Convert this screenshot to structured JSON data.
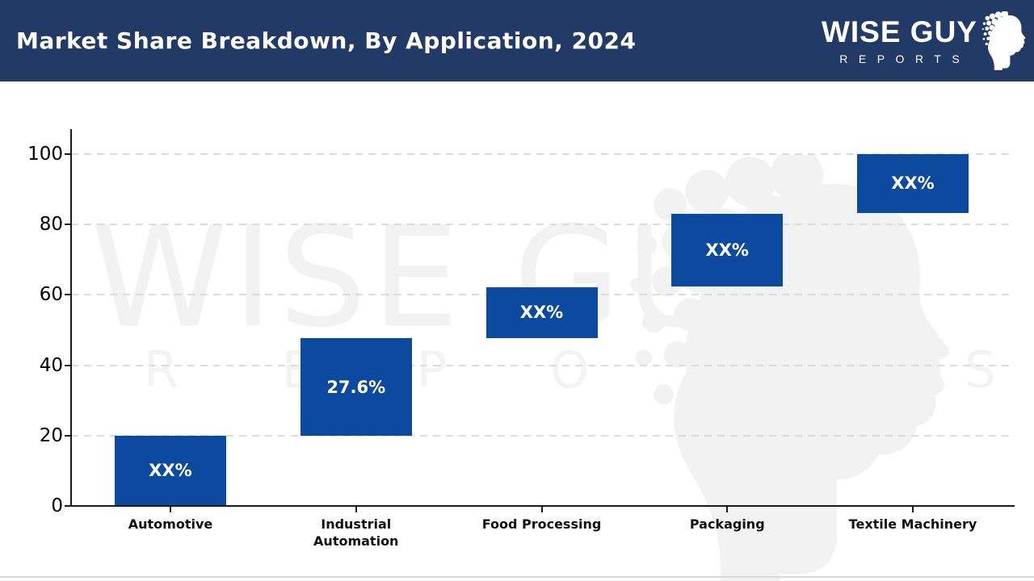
{
  "header": {
    "title": "Market Share Breakdown, By Application, 2024",
    "logo": {
      "word": "WISE GUY",
      "sub": "REPORTS"
    },
    "bg_color": "#213a66"
  },
  "watermark": {
    "line1": "WISE GUY",
    "line2": "R E P O R T S"
  },
  "chart_data": {
    "type": "bar",
    "subtype": "waterfall",
    "title": "Market Share Breakdown, By Application, 2024",
    "xlabel": "",
    "ylabel": "",
    "ylim": [
      0,
      100
    ],
    "yticks": [
      0,
      20,
      40,
      60,
      80,
      100
    ],
    "grid": "horizontal-dashed",
    "legend": "none",
    "bar_color": "#0b4a9e",
    "bar_label_color": "#ffffff",
    "categories": [
      "Automotive",
      "Industrial Automation",
      "Food Processing",
      "Packaging",
      "Textile Machinery"
    ],
    "segments": [
      {
        "category": "Automotive",
        "start": 0,
        "end": 20,
        "value": 20,
        "label": "XX%"
      },
      {
        "category": "Industrial Automation",
        "start": 20,
        "end": 47.6,
        "value": 27.6,
        "label": "27.6%"
      },
      {
        "category": "Food Processing",
        "start": 47.7,
        "end": 62.2,
        "value": 14.5,
        "label": "XX%"
      },
      {
        "category": "Packaging",
        "start": 62.4,
        "end": 83.1,
        "value": 20.7,
        "label": "XX%"
      },
      {
        "category": "Textile Machinery",
        "start": 83.3,
        "end": 100,
        "value": 16.7,
        "label": "XX%"
      }
    ]
  }
}
